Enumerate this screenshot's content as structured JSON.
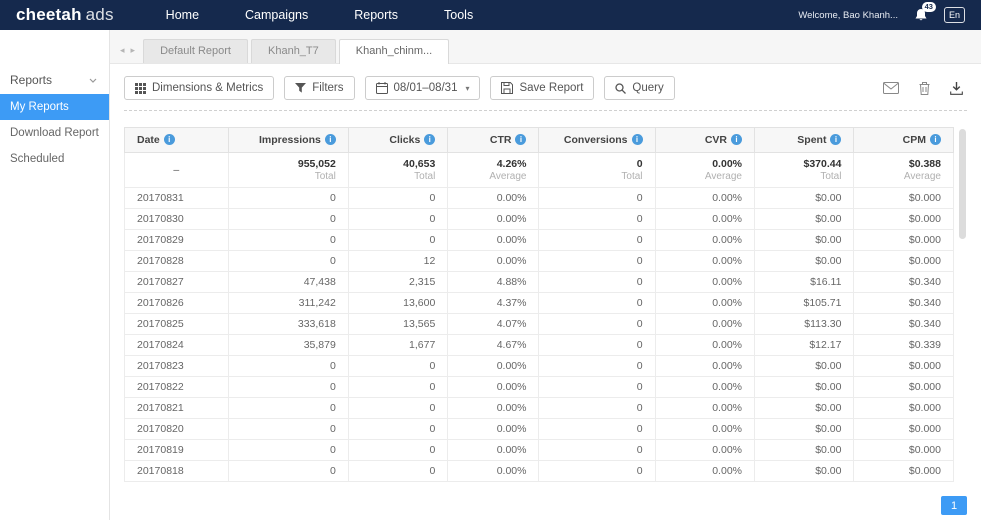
{
  "navbar": {
    "brand": {
      "bold": "cheetah",
      "light": "ads"
    },
    "items": [
      {
        "label": "Home"
      },
      {
        "label": "Campaigns"
      },
      {
        "label": "Reports"
      },
      {
        "label": "Tools"
      }
    ],
    "welcome_label": "Welcome,",
    "username": "Bao Khanh...",
    "notification_count": "43",
    "language": "En"
  },
  "sidebar": {
    "section_label": "Reports",
    "items": [
      {
        "label": "My Reports",
        "active": true
      },
      {
        "label": "Download Report",
        "active": false
      },
      {
        "label": "Scheduled",
        "active": false
      }
    ]
  },
  "tabs": {
    "items": [
      {
        "label": "Default Report",
        "active": false
      },
      {
        "label": "Khanh_T7",
        "active": false
      },
      {
        "label": "Khanh_chinm...",
        "active": true
      }
    ]
  },
  "toolbar": {
    "dimensions_metrics_label": "Dimensions & Metrics",
    "filters_label": "Filters",
    "date_range_label": "08/01–08/31",
    "save_report_label": "Save Report",
    "query_label": "Query"
  },
  "table": {
    "columns": [
      "Date",
      "Impressions",
      "Clicks",
      "CTR",
      "Conversions",
      "CVR",
      "Spent",
      "CPM"
    ],
    "summary": {
      "date": "–",
      "cells": [
        {
          "value": "955,052",
          "sub": "Total"
        },
        {
          "value": "40,653",
          "sub": "Total"
        },
        {
          "value": "4.26%",
          "sub": "Average"
        },
        {
          "value": "0",
          "sub": "Total"
        },
        {
          "value": "0.00%",
          "sub": "Average"
        },
        {
          "value": "$370.44",
          "sub": "Total"
        },
        {
          "value": "$0.388",
          "sub": "Average"
        }
      ]
    },
    "rows": [
      {
        "date": "20170831",
        "cells": [
          "0",
          "0",
          "0.00%",
          "0",
          "0.00%",
          "$0.00",
          "$0.000"
        ]
      },
      {
        "date": "20170830",
        "cells": [
          "0",
          "0",
          "0.00%",
          "0",
          "0.00%",
          "$0.00",
          "$0.000"
        ]
      },
      {
        "date": "20170829",
        "cells": [
          "0",
          "0",
          "0.00%",
          "0",
          "0.00%",
          "$0.00",
          "$0.000"
        ]
      },
      {
        "date": "20170828",
        "cells": [
          "0",
          "12",
          "0.00%",
          "0",
          "0.00%",
          "$0.00",
          "$0.000"
        ]
      },
      {
        "date": "20170827",
        "cells": [
          "47,438",
          "2,315",
          "4.88%",
          "0",
          "0.00%",
          "$16.11",
          "$0.340"
        ]
      },
      {
        "date": "20170826",
        "cells": [
          "311,242",
          "13,600",
          "4.37%",
          "0",
          "0.00%",
          "$105.71",
          "$0.340"
        ]
      },
      {
        "date": "20170825",
        "cells": [
          "333,618",
          "13,565",
          "4.07%",
          "0",
          "0.00%",
          "$113.30",
          "$0.340"
        ]
      },
      {
        "date": "20170824",
        "cells": [
          "35,879",
          "1,677",
          "4.67%",
          "0",
          "0.00%",
          "$12.17",
          "$0.339"
        ]
      },
      {
        "date": "20170823",
        "cells": [
          "0",
          "0",
          "0.00%",
          "0",
          "0.00%",
          "$0.00",
          "$0.000"
        ]
      },
      {
        "date": "20170822",
        "cells": [
          "0",
          "0",
          "0.00%",
          "0",
          "0.00%",
          "$0.00",
          "$0.000"
        ]
      },
      {
        "date": "20170821",
        "cells": [
          "0",
          "0",
          "0.00%",
          "0",
          "0.00%",
          "$0.00",
          "$0.000"
        ]
      },
      {
        "date": "20170820",
        "cells": [
          "0",
          "0",
          "0.00%",
          "0",
          "0.00%",
          "$0.00",
          "$0.000"
        ]
      },
      {
        "date": "20170819",
        "cells": [
          "0",
          "0",
          "0.00%",
          "0",
          "0.00%",
          "$0.00",
          "$0.000"
        ]
      },
      {
        "date": "20170818",
        "cells": [
          "0",
          "0",
          "0.00%",
          "0",
          "0.00%",
          "$0.00",
          "$0.000"
        ]
      }
    ]
  },
  "pagination": {
    "page": "1"
  },
  "colors": {
    "navbar": "#15294d",
    "accent": "#3d9bf5",
    "info_icon": "#4a9bdc"
  }
}
